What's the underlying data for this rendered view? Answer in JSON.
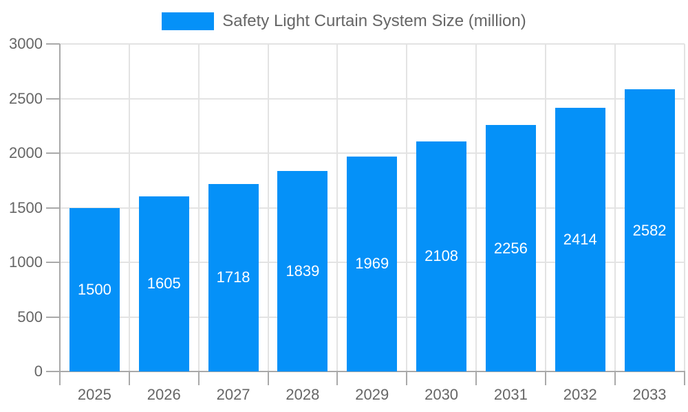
{
  "chart_data": {
    "type": "bar",
    "title": "",
    "legend": "Safety Light Curtain System Size (million)",
    "categories": [
      "2025",
      "2026",
      "2027",
      "2028",
      "2029",
      "2030",
      "2031",
      "2032",
      "2033"
    ],
    "values": [
      1500,
      1605,
      1718,
      1839,
      1969,
      2108,
      2256,
      2414,
      2582
    ],
    "xlabel": "",
    "ylabel": "",
    "ylim": [
      0,
      3000
    ],
    "yticks": [
      0,
      500,
      1000,
      1500,
      2000,
      2500,
      3000
    ],
    "grid": true,
    "legend_position": "top-center",
    "bar_value_labels": "inside-middle",
    "colors": {
      "bar": "#0591f8",
      "grid": "#e3e3e3",
      "axis": "#a9a9a9",
      "tick_label": "#666666",
      "legend_label": "#666666",
      "bar_label": "#ffffff",
      "background": "#ffffff"
    }
  }
}
